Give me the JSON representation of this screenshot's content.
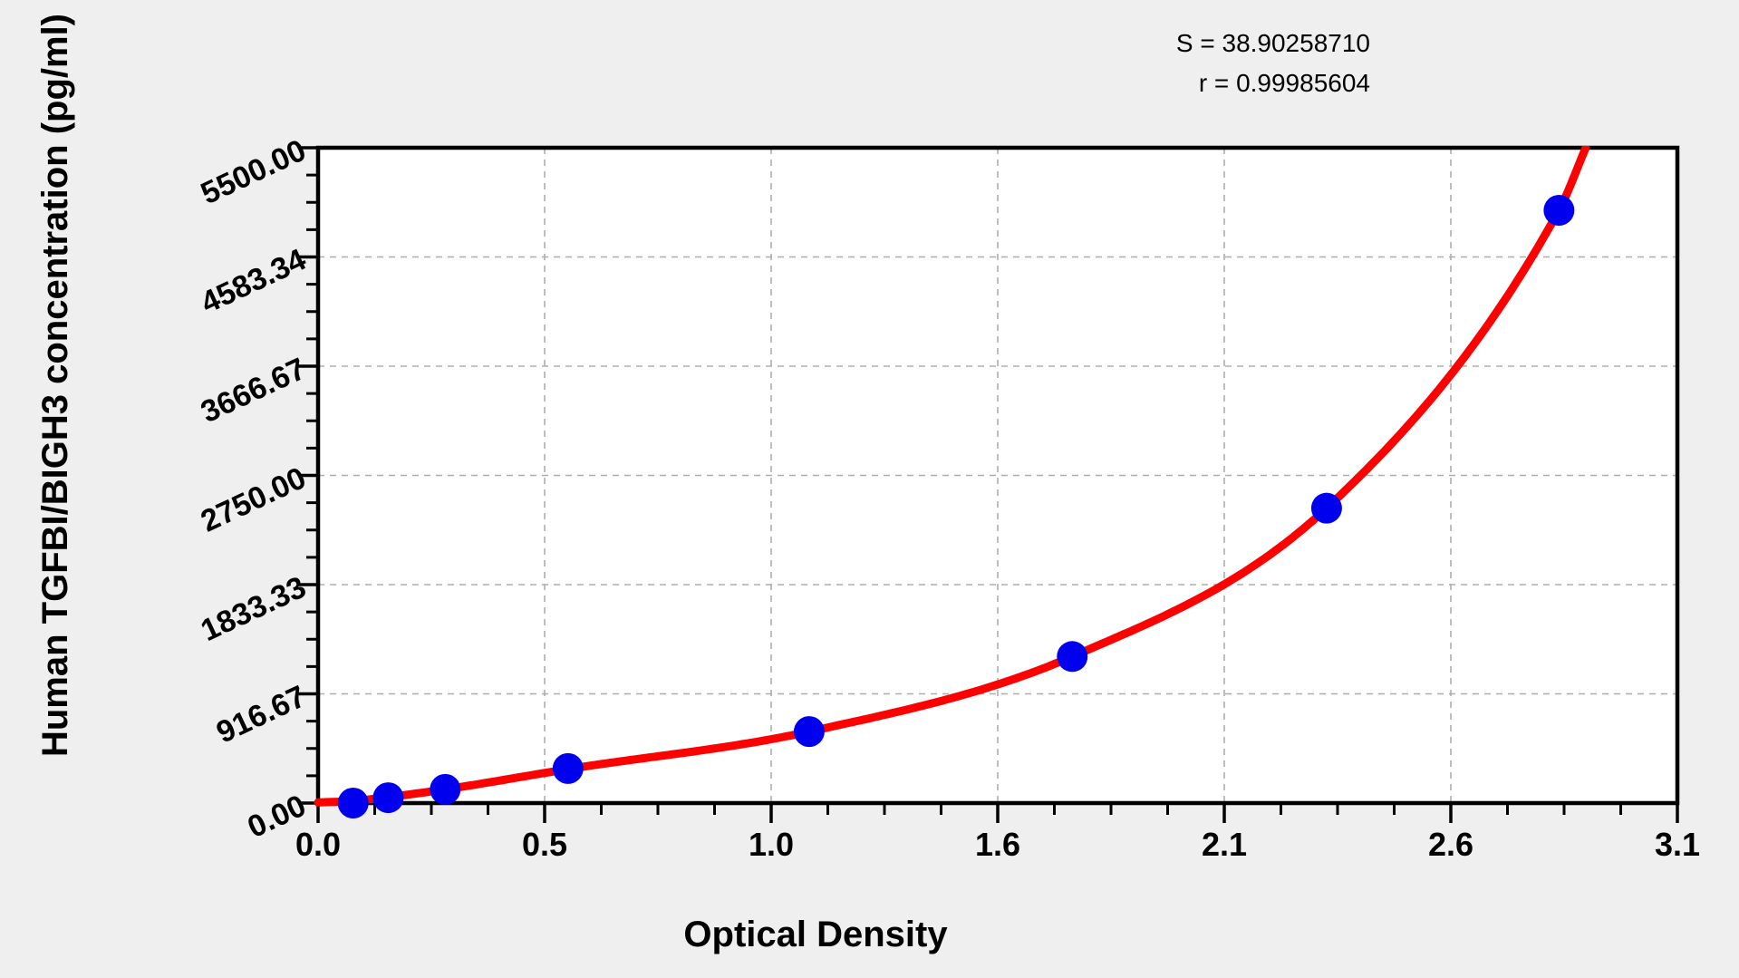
{
  "page": {
    "background_color": "#efefef",
    "plot_background_color": "#ffffff"
  },
  "stats": {
    "s_label": "S = 38.90258710",
    "r_label": "r = 0.99985604"
  },
  "chart_data": {
    "type": "scatter",
    "title": "",
    "xlabel": "Optical Density",
    "ylabel": "Human TGFBI/BIGH3 concentration (pg/ml)",
    "xlim": [
      0,
      3.1
    ],
    "ylim": [
      0,
      5500
    ],
    "x_tick_labels": [
      "0.0",
      "0.5",
      "1.0",
      "1.6",
      "2.1",
      "2.6",
      "3.1"
    ],
    "y_tick_labels": [
      "0.00",
      "916.67",
      "1833.33",
      "2750.00",
      "3666.67",
      "4583.34",
      "5500.00"
    ],
    "x_major_count": 6,
    "y_major_count": 6,
    "minor_divisions_per_major": 4,
    "grid": "dashed on majors",
    "grid_color": "#adadad",
    "axis_color": "#000000",
    "legend_position": "none",
    "annotations": [
      "S = 38.90258710",
      "r = 0.99985604"
    ],
    "series": [
      {
        "name": "standard-points",
        "type": "scatter",
        "color": "#0000ee",
        "marker_radius": 17,
        "points": [
          {
            "od": 0.08,
            "conc": 0
          },
          {
            "od": 0.16,
            "conc": 45
          },
          {
            "od": 0.29,
            "conc": 115
          },
          {
            "od": 0.57,
            "conc": 290
          },
          {
            "od": 1.12,
            "conc": 600
          },
          {
            "od": 1.72,
            "conc": 1230
          },
          {
            "od": 2.3,
            "conc": 2475
          },
          {
            "od": 2.83,
            "conc": 4975
          }
        ]
      },
      {
        "name": "fitted-curve",
        "type": "line",
        "color": "#ff0000",
        "stroke_width": 9,
        "points": [
          {
            "od": 0.0,
            "conc": 5
          },
          {
            "od": 0.08,
            "conc": 18
          },
          {
            "od": 0.16,
            "conc": 50
          },
          {
            "od": 0.29,
            "conc": 115
          },
          {
            "od": 0.57,
            "conc": 285
          },
          {
            "od": 1.12,
            "conc": 600
          },
          {
            "od": 1.72,
            "conc": 1230
          },
          {
            "od": 2.3,
            "conc": 2475
          },
          {
            "od": 2.83,
            "conc": 4975
          },
          {
            "od": 2.891,
            "conc": 5500
          }
        ]
      }
    ]
  }
}
